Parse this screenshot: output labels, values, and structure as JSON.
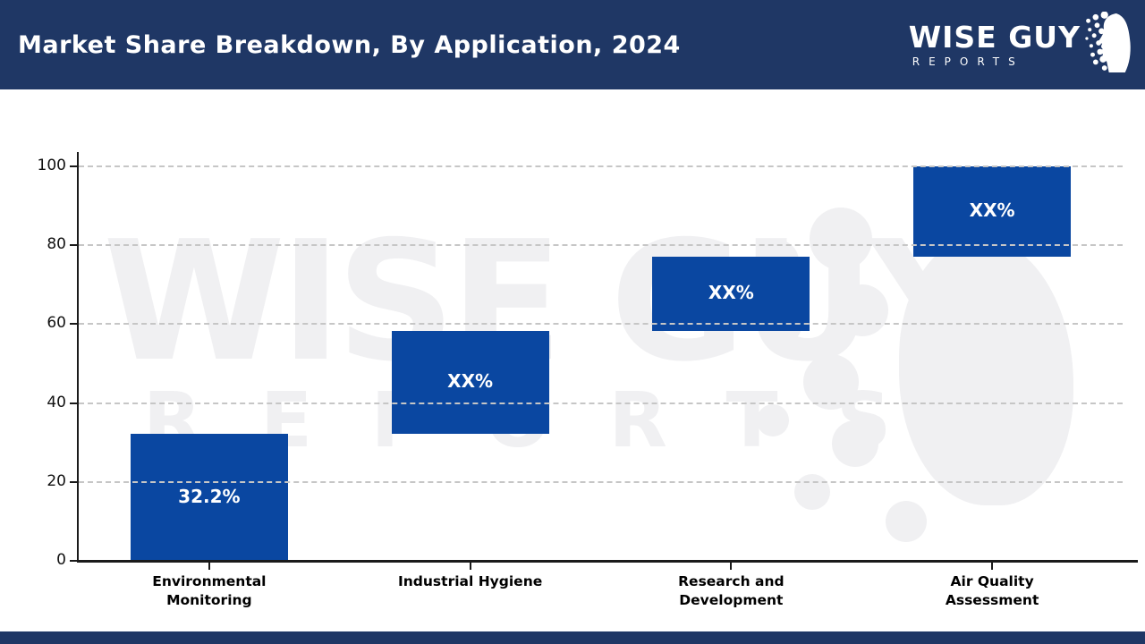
{
  "header": {
    "title": "Market Share Breakdown, By Application, 2024",
    "brand": {
      "line1": "WISE GUY",
      "line2": "REPORTS"
    }
  },
  "watermark": {
    "line1": "WISE GUY",
    "line2": "R E P O R T S"
  },
  "colors": {
    "navy": "#1f3765",
    "bar_blue": "#0a47a1",
    "grid_gray": "#c6c6c6",
    "watermark_gray": "#f0f0f2"
  },
  "chart_data": {
    "type": "bar",
    "subtype": "waterfall",
    "title": "Market Share Breakdown, By Application, 2024",
    "xlabel": "",
    "ylabel": "",
    "ylim": [
      0,
      100
    ],
    "yticks": [
      0,
      20,
      40,
      60,
      80,
      100
    ],
    "grid": true,
    "grid_style": "dashed",
    "legend": "none",
    "bar_color": "#0a47a1",
    "categories": [
      "Environmental\nMonitoring",
      "Industrial Hygiene",
      "Research and\nDevelopment",
      "Air Quality\nAssessment"
    ],
    "segments": [
      {
        "category": "Environmental Monitoring",
        "start": 0,
        "end": 32.2,
        "label": "32.2%"
      },
      {
        "category": "Industrial Hygiene",
        "start": 32.2,
        "end": 58.3,
        "label": "XX%"
      },
      {
        "category": "Research and Development",
        "start": 58.3,
        "end": 77.1,
        "label": "XX%"
      },
      {
        "category": "Air Quality Assessment",
        "start": 77.1,
        "end": 100,
        "label": "XX%"
      }
    ]
  }
}
